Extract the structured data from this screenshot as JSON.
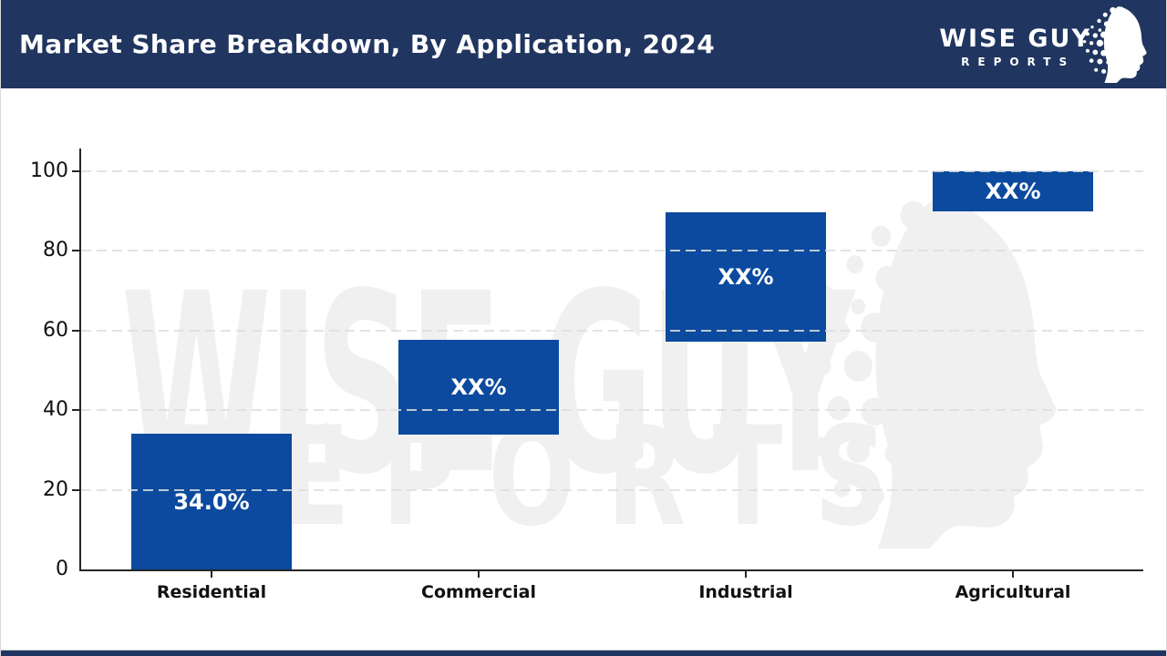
{
  "header": {
    "title": "Market Share Breakdown, By Application, 2024",
    "logo": {
      "brand": "WISE GUY",
      "sub": "REPORTS"
    }
  },
  "watermark": {
    "line1": "WISE GUY",
    "line2": "REPORTS"
  },
  "chart_data": {
    "type": "bar",
    "subtype": "waterfall",
    "title": "Market Share Breakdown, By Application, 2024",
    "categories": [
      "Residential",
      "Commercial",
      "Industrial",
      "Agricultural"
    ],
    "segments": [
      {
        "category": "Residential",
        "start": 0,
        "end": 34.0,
        "value_label": "34.0%"
      },
      {
        "category": "Commercial",
        "start": 33.8,
        "end": 57.6,
        "value_label": "XX%"
      },
      {
        "category": "Industrial",
        "start": 57.1,
        "end": 89.6,
        "value_label": "XX%"
      },
      {
        "category": "Agricultural",
        "start": 89.8,
        "end": 99.9,
        "value_label": "XX%"
      }
    ],
    "y_ticks": [
      0,
      20,
      40,
      60,
      80,
      100
    ],
    "ylim": [
      0,
      105.6
    ],
    "xlabel": "",
    "ylabel": "",
    "grid": "dashed-horizontal",
    "legend": "none"
  },
  "colors": {
    "header_bg": "#20355f",
    "footer_bg": "#20355f",
    "bar": "#0b4a9e",
    "bar_label": "#ffffff",
    "axis": "#262626",
    "grid": "#dedede",
    "watermark": "#f0f0f0"
  }
}
